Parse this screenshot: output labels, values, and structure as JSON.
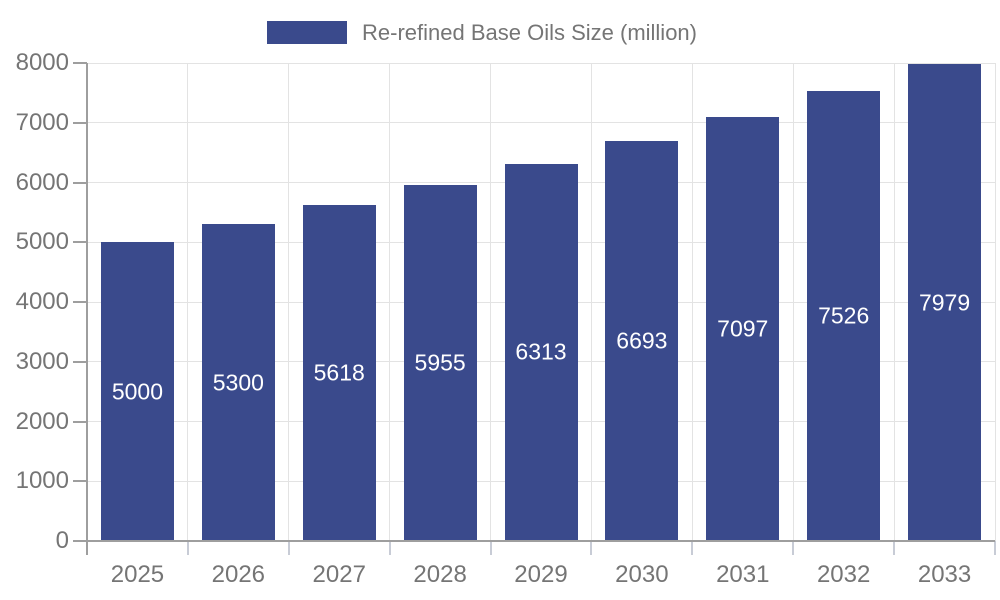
{
  "chart_data": {
    "type": "bar",
    "title": "Re-refined Base Oils Size (million)",
    "categories": [
      "2025",
      "2026",
      "2027",
      "2028",
      "2029",
      "2030",
      "2031",
      "2032",
      "2033"
    ],
    "values": [
      5000,
      5300,
      5618,
      5955,
      6313,
      6693,
      7097,
      7526,
      7979
    ],
    "bar_value_labels": [
      "5000",
      "5300",
      "5618",
      "5955",
      "6313",
      "6693",
      "7097",
      "7526",
      "7979"
    ],
    "ytick_labels": [
      "0",
      "1000",
      "2000",
      "3000",
      "4000",
      "5000",
      "6000",
      "7000",
      "8000"
    ],
    "ylim": [
      0,
      8000
    ],
    "ytick_step": 1000,
    "grid": true,
    "legend_position": "top-center",
    "xlabel": "",
    "ylabel": "",
    "colors": {
      "bar": "#3a4a8c",
      "bar_label": "#ffffff",
      "grid": "#e3e3e3",
      "axis": "#9e9e9e",
      "x_tick": "#c8ccd6",
      "tick_label": "#757575"
    }
  }
}
